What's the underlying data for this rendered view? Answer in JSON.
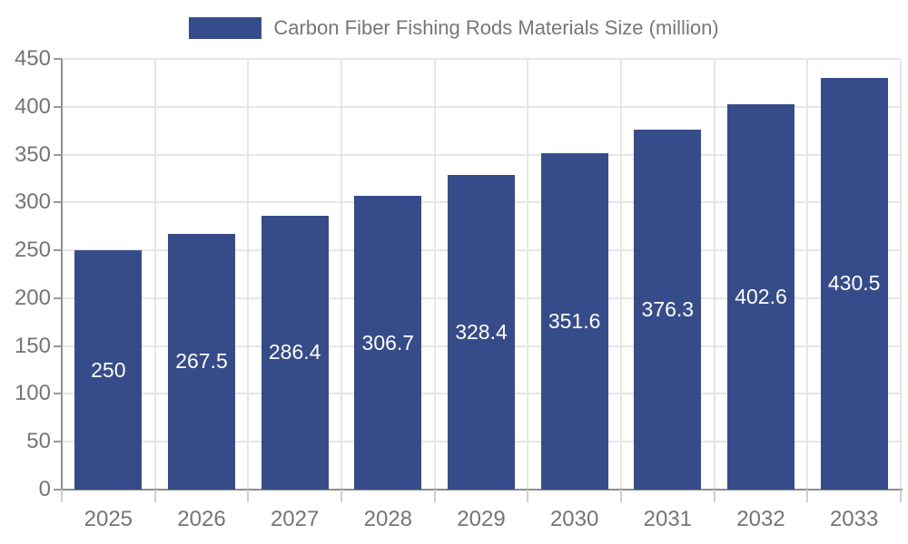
{
  "legend": {
    "label": "Carbon Fiber Fishing Rods Materials Size (million)"
  },
  "chart_data": {
    "type": "bar",
    "title": "Carbon Fiber Fishing Rods Materials Size (million)",
    "categories": [
      "2025",
      "2026",
      "2027",
      "2028",
      "2029",
      "2030",
      "2031",
      "2032",
      "2033"
    ],
    "values": [
      250,
      267.5,
      286.4,
      306.7,
      328.4,
      351.6,
      376.3,
      402.6,
      430.5
    ],
    "bar_labels": [
      "250",
      "267.5",
      "286.4",
      "306.7",
      "328.4",
      "351.6",
      "376.3",
      "402.6",
      "430.5"
    ],
    "xlabel": "",
    "ylabel": "",
    "ylim": [
      0,
      450
    ],
    "yticks": [
      0,
      50,
      100,
      150,
      200,
      250,
      300,
      350,
      400,
      450
    ],
    "grid": true,
    "legend_position": "top-center",
    "colors": {
      "bar": "#364c8a",
      "bar_label_text": "#ffffff",
      "grid": "#e6e6e6",
      "axis": "#8c8c8c",
      "tick_text": "#757575",
      "legend_text": "#777777",
      "bottom_tick": "#cfcfcf",
      "background": "#ffffff"
    }
  }
}
